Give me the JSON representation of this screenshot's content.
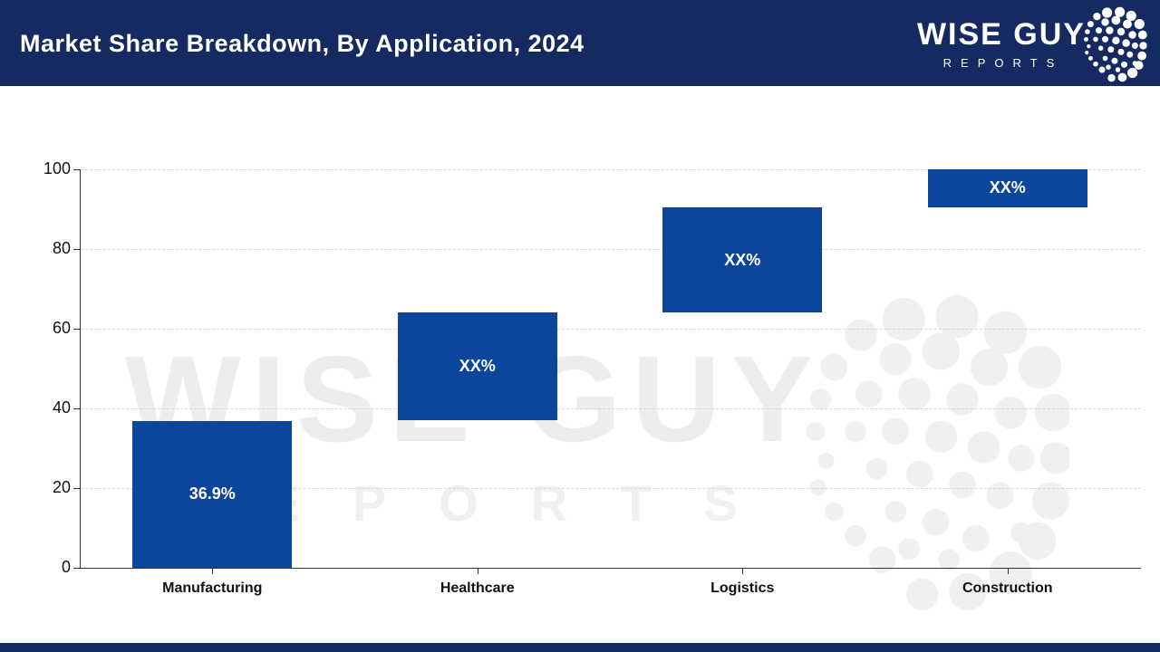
{
  "header": {
    "title": "Market Share Breakdown, By Application, 2024",
    "logo": {
      "line1": "WISE GUY",
      "line2": "REPORTS"
    }
  },
  "watermark": {
    "line1": "WISE GUY",
    "line2": "REPORTS"
  },
  "colors": {
    "header_bg": "#152a60",
    "footer_bg": "#152a60",
    "bar": "#0c459c",
    "bar_label": "#ffffff",
    "watermark_text": "#ededed",
    "grid": "#d8d8d8"
  },
  "chart_data": {
    "type": "bar",
    "subtype": "waterfall",
    "title": "Market Share Breakdown, By Application, 2024",
    "categories": [
      "Manufacturing",
      "Healthcare",
      "Logistics",
      "Construction"
    ],
    "series": [
      {
        "name": "Market Share (%)",
        "segments": [
          {
            "base": 0,
            "top": 36.9,
            "label": "36.9%"
          },
          {
            "base": 37,
            "top": 64,
            "label": "XX%"
          },
          {
            "base": 64,
            "top": 90.5,
            "label": "XX%"
          },
          {
            "base": 90.5,
            "top": 100,
            "label": "XX%"
          }
        ]
      }
    ],
    "xlabel": "",
    "ylabel": "",
    "ylim": [
      0,
      100
    ],
    "yticks": [
      0,
      20,
      40,
      60,
      80,
      100
    ],
    "grid": true,
    "grid_style": "dashed",
    "legend": false
  }
}
